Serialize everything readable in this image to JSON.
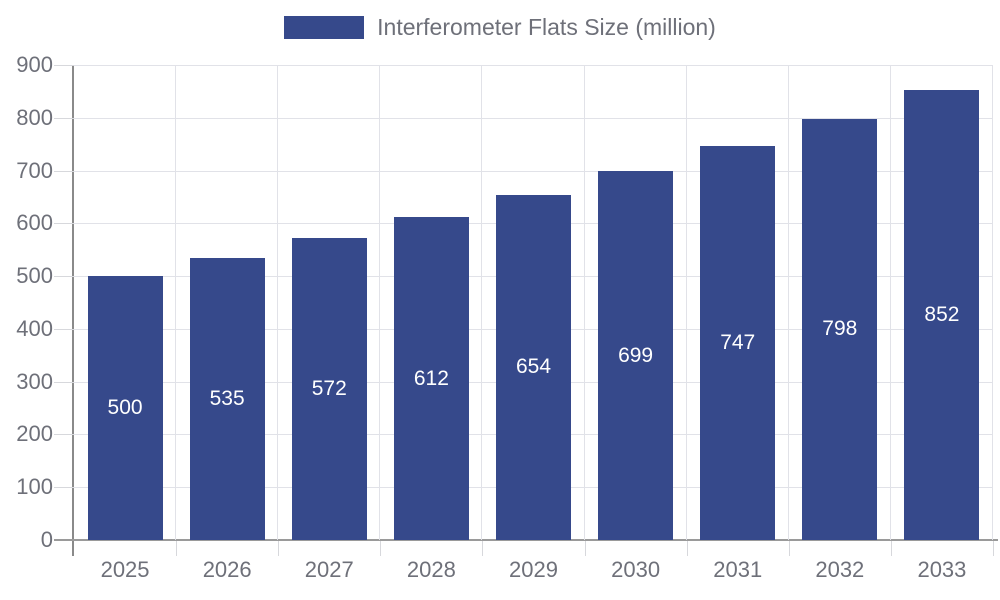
{
  "legend": {
    "label": "Interferometer Flats Size (million)"
  },
  "colors": {
    "bar": "#36498b",
    "grid": "#e1e2e8",
    "axis_line": "#9a9a9a",
    "tick": "#d7d8dc",
    "axis_text": "#6e7079",
    "data_label_text": "#ffffff",
    "background": "#ffffff"
  },
  "chart_data": {
    "type": "bar",
    "title": "",
    "series_name": "Interferometer Flats Size (million)",
    "categories": [
      "2025",
      "2026",
      "2027",
      "2028",
      "2029",
      "2030",
      "2031",
      "2032",
      "2033"
    ],
    "values": [
      500,
      535,
      572,
      612,
      654,
      699,
      747,
      798,
      852
    ],
    "xlabel": "",
    "ylabel": "",
    "ylim": [
      0,
      900
    ],
    "yticks": [
      0,
      100,
      200,
      300,
      400,
      500,
      600,
      700,
      800,
      900
    ],
    "grid": true,
    "legend_position": "top-center",
    "data_labels_position": "inside-center"
  }
}
